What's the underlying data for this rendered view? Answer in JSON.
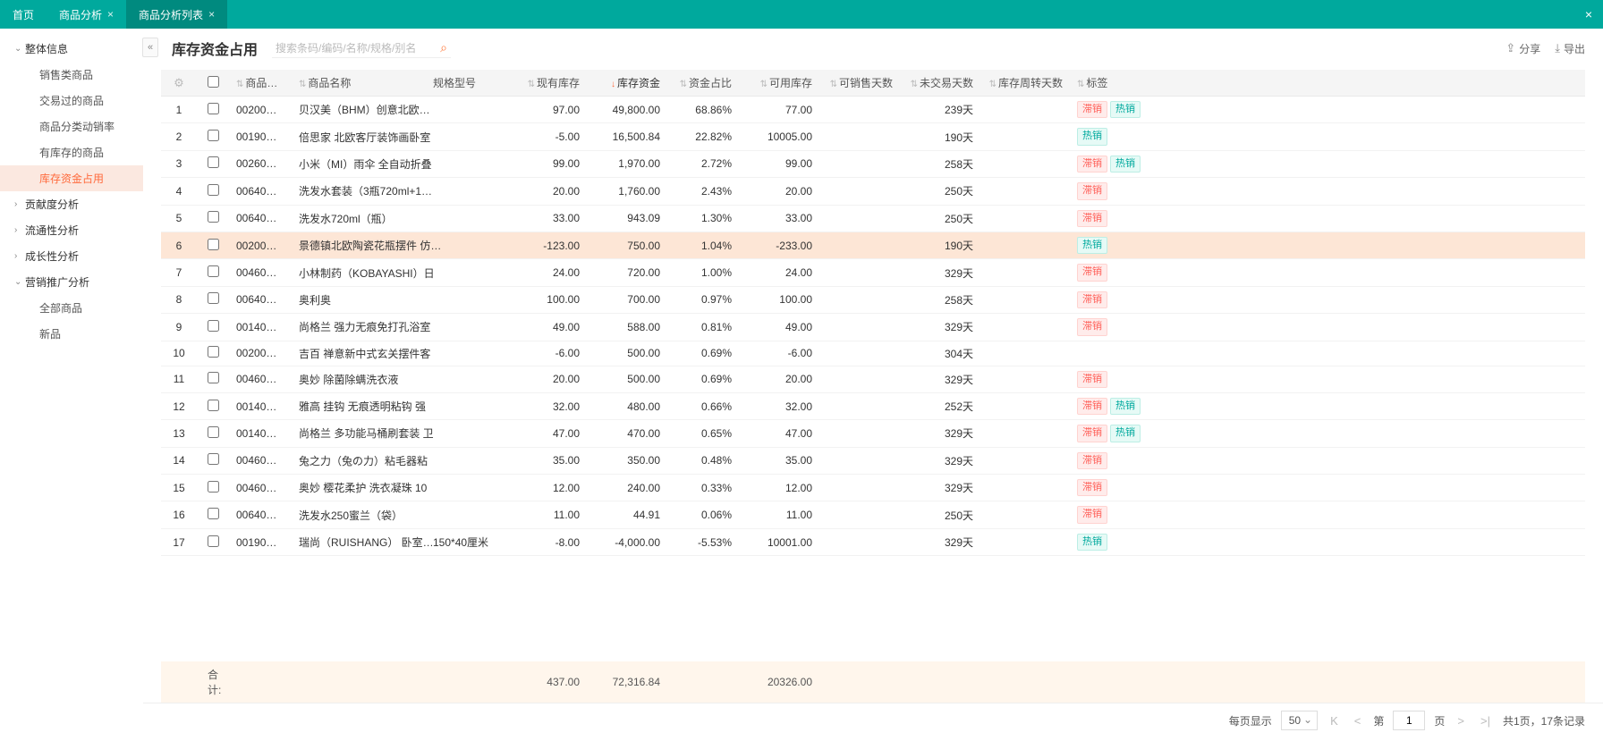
{
  "tabs": [
    {
      "label": "首页",
      "closable": false,
      "active": false
    },
    {
      "label": "商品分析",
      "closable": true,
      "active": false
    },
    {
      "label": "商品分析列表",
      "closable": true,
      "active": true
    }
  ],
  "sidebar": {
    "groups": [
      {
        "label": "整体信息",
        "expanded": true,
        "items": [
          "销售类商品",
          "交易过的商品",
          "商品分类动销率",
          "有库存的商品",
          "库存资金占用"
        ],
        "activeIndex": 4
      },
      {
        "label": "贡献度分析",
        "expanded": false,
        "items": []
      },
      {
        "label": "流通性分析",
        "expanded": false,
        "items": []
      },
      {
        "label": "成长性分析",
        "expanded": false,
        "items": []
      },
      {
        "label": "营销推广分析",
        "expanded": true,
        "items": [
          "全部商品",
          "新品"
        ],
        "activeIndex": -1
      }
    ]
  },
  "page": {
    "title": "库存资金占用",
    "search_placeholder": "搜索条码/编码/名称/规格/别名",
    "share_label": "分享",
    "export_label": "导出"
  },
  "columns": [
    {
      "key": "idx",
      "label": "",
      "w": 40,
      "gear": true,
      "align": "ctr"
    },
    {
      "key": "chk",
      "label": "",
      "w": 36,
      "checkbox": true,
      "align": "ctr"
    },
    {
      "key": "code",
      "label": "商品…",
      "w": 70,
      "sortable": true
    },
    {
      "key": "name",
      "label": "商品名称",
      "w": 150,
      "sortable": true
    },
    {
      "key": "spec",
      "label": "规格型号",
      "w": 90
    },
    {
      "key": "stock",
      "label": "现有库存",
      "w": 90,
      "sortable": true,
      "align": "num"
    },
    {
      "key": "fund",
      "label": "库存资金",
      "w": 90,
      "sortable": true,
      "align": "num",
      "sortDesc": true
    },
    {
      "key": "pct",
      "label": "资金占比",
      "w": 80,
      "sortable": true,
      "align": "num"
    },
    {
      "key": "avail",
      "label": "可用库存",
      "w": 90,
      "sortable": true,
      "align": "num"
    },
    {
      "key": "sdays",
      "label": "可销售天数",
      "w": 90,
      "sortable": true,
      "align": "num"
    },
    {
      "key": "ntdays",
      "label": "未交易天数",
      "w": 90,
      "sortable": true,
      "align": "num"
    },
    {
      "key": "turn",
      "label": "库存周转天数",
      "w": 100,
      "sortable": true,
      "align": "num"
    },
    {
      "key": "tags",
      "label": "标签",
      "w": 120,
      "sortable": true
    }
  ],
  "tagStyles": {
    "滞销": "tag-slow",
    "热销": "tag-hot"
  },
  "rows": [
    {
      "idx": 1,
      "code": "00200…",
      "name": "贝汉美（BHM）创意北欧…",
      "spec": "",
      "stock": "97.00",
      "fund": "49,800.00",
      "pct": "68.86%",
      "avail": "77.00",
      "sdays": "",
      "ntdays": "239天",
      "turn": "",
      "tags": [
        "滞销",
        "热销"
      ]
    },
    {
      "idx": 2,
      "code": "00190…",
      "name": "倍思家 北欧客厅装饰画卧室",
      "spec": "",
      "stock": "-5.00",
      "fund": "16,500.84",
      "pct": "22.82%",
      "avail": "10005.00",
      "sdays": "",
      "ntdays": "190天",
      "turn": "",
      "tags": [
        "热销"
      ]
    },
    {
      "idx": 3,
      "code": "00260…",
      "name": "小米（MI）雨伞 全自动折叠",
      "spec": "",
      "stock": "99.00",
      "fund": "1,970.00",
      "pct": "2.72%",
      "avail": "99.00",
      "sdays": "",
      "ntdays": "258天",
      "turn": "",
      "tags": [
        "滞销",
        "热销"
      ]
    },
    {
      "idx": 4,
      "code": "00640…",
      "name": "洗发水套装（3瓶720ml+1…",
      "spec": "",
      "stock": "20.00",
      "fund": "1,760.00",
      "pct": "2.43%",
      "avail": "20.00",
      "sdays": "",
      "ntdays": "250天",
      "turn": "",
      "tags": [
        "滞销"
      ]
    },
    {
      "idx": 5,
      "code": "00640…",
      "name": "洗发水720ml（瓶）",
      "spec": "",
      "stock": "33.00",
      "fund": "943.09",
      "pct": "1.30%",
      "avail": "33.00",
      "sdays": "",
      "ntdays": "250天",
      "turn": "",
      "tags": [
        "滞销"
      ]
    },
    {
      "idx": 6,
      "code": "00200…",
      "name": "景德镇北欧陶瓷花瓶摆件 仿…",
      "spec": "",
      "stock": "-123.00",
      "fund": "750.00",
      "pct": "1.04%",
      "avail": "-233.00",
      "sdays": "",
      "ntdays": "190天",
      "turn": "",
      "tags": [
        "热销"
      ],
      "highlight": true
    },
    {
      "idx": 7,
      "code": "00460…",
      "name": "小林制药（KOBAYASHI）日",
      "spec": "",
      "stock": "24.00",
      "fund": "720.00",
      "pct": "1.00%",
      "avail": "24.00",
      "sdays": "",
      "ntdays": "329天",
      "turn": "",
      "tags": [
        "滞销"
      ]
    },
    {
      "idx": 8,
      "code": "00640…",
      "name": "奥利奥",
      "spec": "",
      "stock": "100.00",
      "fund": "700.00",
      "pct": "0.97%",
      "avail": "100.00",
      "sdays": "",
      "ntdays": "258天",
      "turn": "",
      "tags": [
        "滞销"
      ]
    },
    {
      "idx": 9,
      "code": "00140…",
      "name": "尚格兰 强力无痕免打孔浴室",
      "spec": "",
      "stock": "49.00",
      "fund": "588.00",
      "pct": "0.81%",
      "avail": "49.00",
      "sdays": "",
      "ntdays": "329天",
      "turn": "",
      "tags": [
        "滞销"
      ]
    },
    {
      "idx": 10,
      "code": "00200…",
      "name": "吉百 禅意新中式玄关摆件客",
      "spec": "",
      "stock": "-6.00",
      "fund": "500.00",
      "pct": "0.69%",
      "avail": "-6.00",
      "sdays": "",
      "ntdays": "304天",
      "turn": "",
      "tags": []
    },
    {
      "idx": 11,
      "code": "00460…",
      "name": "奥妙 除菌除螨洗衣液",
      "spec": "",
      "stock": "20.00",
      "fund": "500.00",
      "pct": "0.69%",
      "avail": "20.00",
      "sdays": "",
      "ntdays": "329天",
      "turn": "",
      "tags": [
        "滞销"
      ]
    },
    {
      "idx": 12,
      "code": "00140…",
      "name": "雅高 挂钩 无痕透明粘钩 强",
      "spec": "",
      "stock": "32.00",
      "fund": "480.00",
      "pct": "0.66%",
      "avail": "32.00",
      "sdays": "",
      "ntdays": "252天",
      "turn": "",
      "tags": [
        "滞销",
        "热销"
      ]
    },
    {
      "idx": 13,
      "code": "00140…",
      "name": "尚格兰 多功能马桶刷套装 卫",
      "spec": "",
      "stock": "47.00",
      "fund": "470.00",
      "pct": "0.65%",
      "avail": "47.00",
      "sdays": "",
      "ntdays": "329天",
      "turn": "",
      "tags": [
        "滞销",
        "热销"
      ]
    },
    {
      "idx": 14,
      "code": "00460…",
      "name": "兔之力（兔の力）粘毛器粘",
      "spec": "",
      "stock": "35.00",
      "fund": "350.00",
      "pct": "0.48%",
      "avail": "35.00",
      "sdays": "",
      "ntdays": "329天",
      "turn": "",
      "tags": [
        "滞销"
      ]
    },
    {
      "idx": 15,
      "code": "00460…",
      "name": "奥妙 樱花柔护 洗衣凝珠 10",
      "spec": "",
      "stock": "12.00",
      "fund": "240.00",
      "pct": "0.33%",
      "avail": "12.00",
      "sdays": "",
      "ntdays": "329天",
      "turn": "",
      "tags": [
        "滞销"
      ]
    },
    {
      "idx": 16,
      "code": "00640…",
      "name": "洗发水250蜜兰（袋）",
      "spec": "",
      "stock": "11.00",
      "fund": "44.91",
      "pct": "0.06%",
      "avail": "11.00",
      "sdays": "",
      "ntdays": "250天",
      "turn": "",
      "tags": [
        "滞销"
      ]
    },
    {
      "idx": 17,
      "code": "00190…",
      "name": "瑞尚（RUISHANG） 卧室…",
      "spec": "150*40厘米",
      "stock": "-8.00",
      "fund": "-4,000.00",
      "pct": "-5.53%",
      "avail": "10001.00",
      "sdays": "",
      "ntdays": "329天",
      "turn": "",
      "tags": [
        "热销"
      ]
    }
  ],
  "totals": {
    "label": "合计:",
    "stock": "437.00",
    "fund": "72,316.84",
    "avail": "20326.00"
  },
  "pager": {
    "per_page_label": "每页显示",
    "page_size": "50",
    "page_word": "第",
    "page_no": "1",
    "page_unit": "页",
    "summary": "共1页，17条记录"
  }
}
